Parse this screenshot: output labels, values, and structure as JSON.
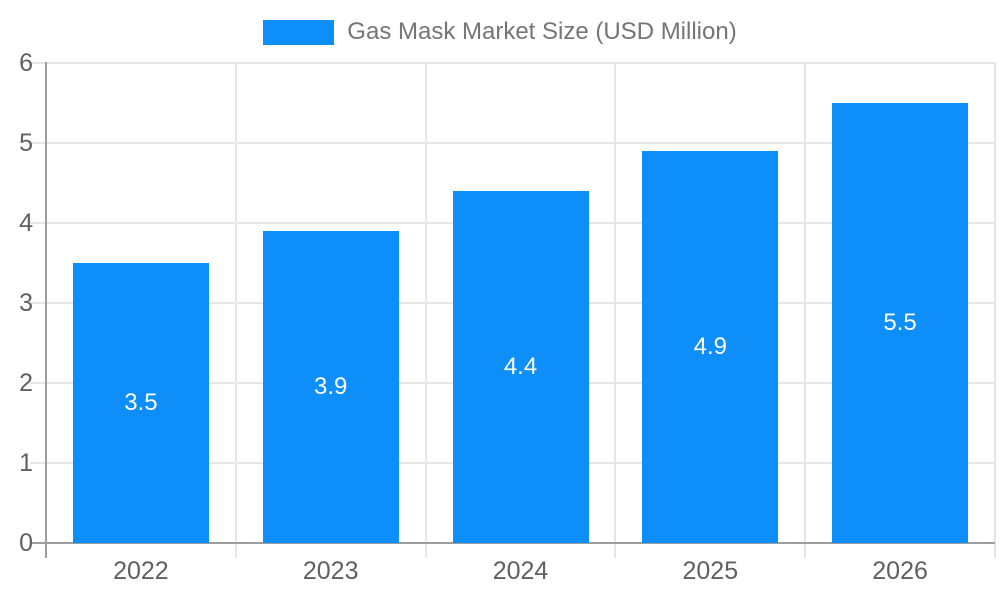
{
  "legend": {
    "label": "Gas Mask Market Size (USD Million)"
  },
  "chart_data": {
    "type": "bar",
    "title": "Gas Mask Market Size (USD Million)",
    "categories": [
      "2022",
      "2023",
      "2024",
      "2025",
      "2026"
    ],
    "values": [
      3.5,
      3.9,
      4.4,
      4.9,
      5.5
    ],
    "value_labels": [
      "3.5",
      "3.9",
      "4.4",
      "4.9",
      "5.5"
    ],
    "legend_entries": [
      "Gas Mask Market Size (USD Million)"
    ],
    "legend_position": "top-center",
    "xlabel": "",
    "ylabel": "",
    "ylim": [
      0,
      6
    ],
    "y_ticks": [
      "0",
      "1",
      "2",
      "3",
      "4",
      "5",
      "6"
    ],
    "grid": true,
    "colors": {
      "bar": "#0d8ef8",
      "grid": "#e6e6e6",
      "axis": "#9e9e9e",
      "tick_label": "#606060",
      "legend_text": "#757575",
      "value_label": "#ffffff",
      "background": "#ffffff"
    }
  }
}
